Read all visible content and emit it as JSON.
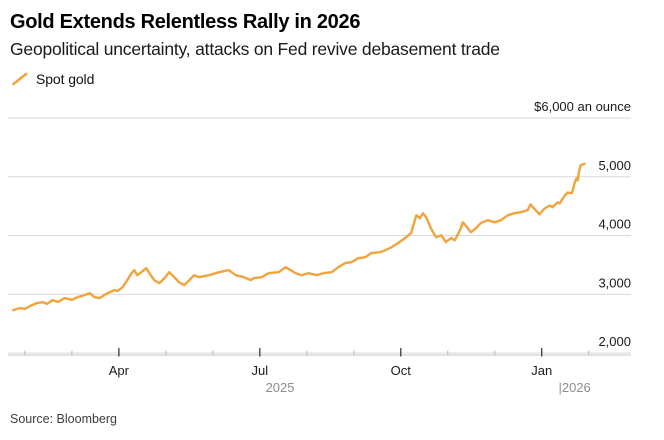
{
  "header": {
    "title": "Gold Extends Relentless Rally in 2026",
    "subtitle": "Geopolitical uncertainty, attacks on Fed revive debasement trade"
  },
  "legend": {
    "label": "Spot gold"
  },
  "source": "Source: Bloomberg",
  "colors": {
    "line": "#F1A33C",
    "gridline": "#D9D9D9",
    "axis_line": "#C4C4C4",
    "major_tick": "#2B2B2B",
    "minor_tick": "#B8B8B8",
    "tick_label": "#1A1A1A",
    "year_label": "#8E8E8E"
  },
  "chart_data": {
    "type": "line",
    "title": "Gold Extends Relentless Rally in 2026",
    "subtitle": "Geopolitical uncertainty, attacks on Fed revive debasement trade",
    "legend_position": "top-left",
    "grid": true,
    "x_axis": {
      "unit": "months since Jan 1, 2025 (3 = Apr 1 2025, 12 = Jan 1 2026)",
      "range": [
        0.64,
        13.9
      ],
      "major_ticks": [
        {
          "m": 3,
          "label": "Apr"
        },
        {
          "m": 6,
          "label": "Jul"
        },
        {
          "m": 9,
          "label": "Oct"
        },
        {
          "m": 12,
          "label": "Jan"
        }
      ],
      "minor_tick_months": [
        1,
        2,
        4,
        5,
        7,
        8,
        10,
        11,
        13
      ],
      "year_labels": [
        {
          "m": 6.43,
          "label": "2025"
        },
        {
          "m": 12.7,
          "label": "|2026"
        }
      ]
    },
    "y_axis": {
      "unit": "USD per troy ounce",
      "range": [
        2000,
        6000
      ],
      "gridlines": [
        2000,
        3000,
        4000,
        5000,
        6000
      ],
      "position": "right",
      "labels": [
        {
          "value": 6000,
          "label": "$6,000 an ounce"
        },
        {
          "value": 5000,
          "label": "5,000"
        },
        {
          "value": 4000,
          "label": "4,000"
        },
        {
          "value": 3000,
          "label": "3,000"
        },
        {
          "value": 2000,
          "label": "2,000"
        }
      ]
    },
    "series": [
      {
        "name": "Spot gold",
        "color": "#F1A33C",
        "points": [
          [
            0.75,
            2730
          ],
          [
            0.89,
            2765
          ],
          [
            1.0,
            2750
          ],
          [
            1.11,
            2800
          ],
          [
            1.25,
            2850
          ],
          [
            1.38,
            2865
          ],
          [
            1.47,
            2835
          ],
          [
            1.59,
            2900
          ],
          [
            1.7,
            2870
          ],
          [
            1.85,
            2935
          ],
          [
            2.0,
            2905
          ],
          [
            2.12,
            2950
          ],
          [
            2.27,
            2985
          ],
          [
            2.38,
            3020
          ],
          [
            2.48,
            2950
          ],
          [
            2.59,
            2935
          ],
          [
            2.69,
            2985
          ],
          [
            2.8,
            3035
          ],
          [
            2.91,
            3070
          ],
          [
            2.97,
            3055
          ],
          [
            3.08,
            3120
          ],
          [
            3.18,
            3240
          ],
          [
            3.27,
            3360
          ],
          [
            3.33,
            3410
          ],
          [
            3.39,
            3325
          ],
          [
            3.48,
            3375
          ],
          [
            3.58,
            3445
          ],
          [
            3.65,
            3360
          ],
          [
            3.75,
            3240
          ],
          [
            3.86,
            3190
          ],
          [
            3.97,
            3275
          ],
          [
            4.07,
            3375
          ],
          [
            4.18,
            3290
          ],
          [
            4.28,
            3205
          ],
          [
            4.39,
            3155
          ],
          [
            4.5,
            3240
          ],
          [
            4.6,
            3325
          ],
          [
            4.71,
            3290
          ],
          [
            4.92,
            3325
          ],
          [
            5.13,
            3375
          ],
          [
            5.34,
            3410
          ],
          [
            5.49,
            3325
          ],
          [
            5.66,
            3290
          ],
          [
            5.81,
            3240
          ],
          [
            5.87,
            3275
          ],
          [
            6.04,
            3290
          ],
          [
            6.19,
            3360
          ],
          [
            6.4,
            3375
          ],
          [
            6.55,
            3460
          ],
          [
            6.76,
            3360
          ],
          [
            6.89,
            3325
          ],
          [
            7.04,
            3360
          ],
          [
            7.21,
            3325
          ],
          [
            7.36,
            3360
          ],
          [
            7.53,
            3375
          ],
          [
            7.67,
            3460
          ],
          [
            7.82,
            3530
          ],
          [
            7.95,
            3545
          ],
          [
            8.1,
            3615
          ],
          [
            8.25,
            3630
          ],
          [
            8.37,
            3700
          ],
          [
            8.56,
            3715
          ],
          [
            8.67,
            3750
          ],
          [
            8.8,
            3800
          ],
          [
            8.94,
            3870
          ],
          [
            9.09,
            3955
          ],
          [
            9.22,
            4040
          ],
          [
            9.3,
            4260
          ],
          [
            9.33,
            4345
          ],
          [
            9.41,
            4295
          ],
          [
            9.47,
            4380
          ],
          [
            9.54,
            4310
          ],
          [
            9.64,
            4125
          ],
          [
            9.75,
            3970
          ],
          [
            9.86,
            4005
          ],
          [
            9.96,
            3890
          ],
          [
            10.07,
            3955
          ],
          [
            10.15,
            3920
          ],
          [
            10.26,
            4090
          ],
          [
            10.32,
            4225
          ],
          [
            10.38,
            4175
          ],
          [
            10.49,
            4055
          ],
          [
            10.6,
            4125
          ],
          [
            10.7,
            4210
          ],
          [
            10.85,
            4260
          ],
          [
            11.0,
            4225
          ],
          [
            11.13,
            4260
          ],
          [
            11.28,
            4345
          ],
          [
            11.42,
            4380
          ],
          [
            11.55,
            4395
          ],
          [
            11.7,
            4430
          ],
          [
            11.76,
            4530
          ],
          [
            11.87,
            4430
          ],
          [
            11.95,
            4360
          ],
          [
            12.06,
            4460
          ],
          [
            12.17,
            4510
          ],
          [
            12.23,
            4480
          ],
          [
            12.34,
            4565
          ],
          [
            12.38,
            4545
          ],
          [
            12.49,
            4680
          ],
          [
            12.55,
            4730
          ],
          [
            12.64,
            4720
          ],
          [
            12.66,
            4770
          ],
          [
            12.7,
            4890
          ],
          [
            12.74,
            4975
          ],
          [
            12.77,
            4940
          ],
          [
            12.79,
            5075
          ],
          [
            12.83,
            5195
          ],
          [
            12.91,
            5220
          ]
        ]
      }
    ]
  }
}
